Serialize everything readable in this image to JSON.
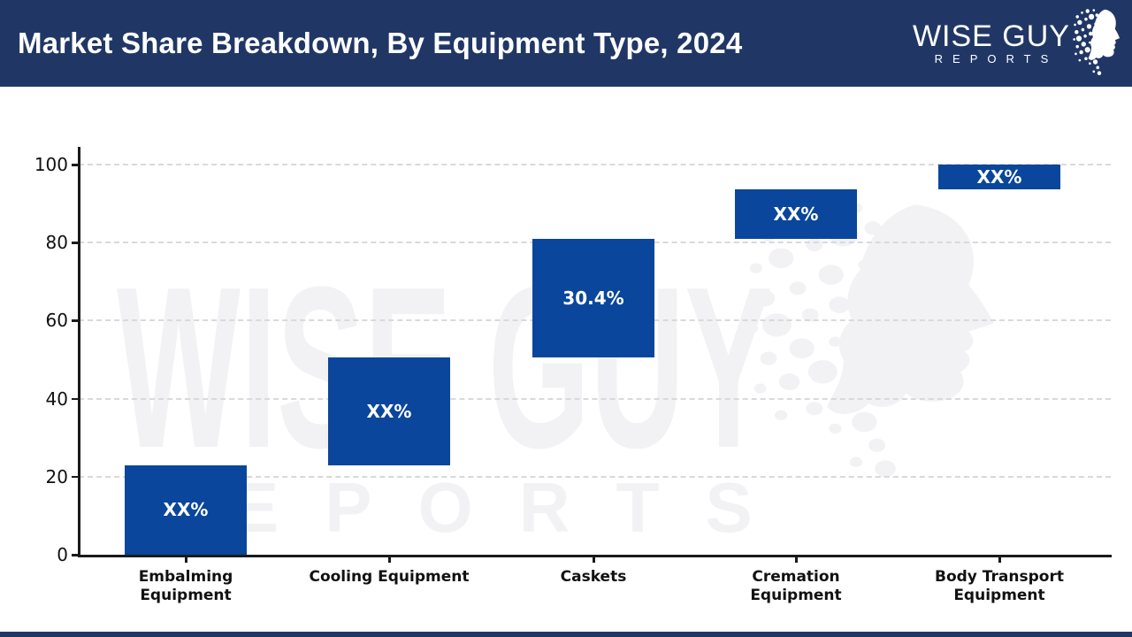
{
  "header": {
    "title": "Market Share Breakdown, By Equipment Type, 2024",
    "logo": {
      "wordmark": "WISE GUY",
      "subtitle": "REPORTS",
      "face_icon": "dot-head-profile-icon"
    }
  },
  "watermark": {
    "wordmark": "WISE GUY",
    "subtitle": "REPORTS",
    "face_icon": "dot-head-profile-icon"
  },
  "colors": {
    "header_bg": "#203766",
    "title_text": "#ffffff",
    "bar": "#0a469b",
    "bar_label": "#ffffff",
    "grid": "#d9d9d9",
    "axis": "#1a1a1a",
    "watermark": "#f2f2f4"
  },
  "chart_data": {
    "type": "bar",
    "subtype": "floating-waterfall",
    "title": "Market Share Breakdown, By Equipment Type, 2024",
    "unit": "%",
    "categories": [
      "Embalming Equipment",
      "Cooling Equipment",
      "Caskets",
      "Cremation Equipment",
      "Body Transport Equipment"
    ],
    "category_lines": [
      [
        "Embalming",
        "Equipment"
      ],
      [
        "Cooling Equipment"
      ],
      [
        "Caskets"
      ],
      [
        "Cremation",
        "Equipment"
      ],
      [
        "Body Transport",
        "Equipment"
      ]
    ],
    "segments": [
      {
        "category": "Embalming Equipment",
        "start": 0,
        "end": 23,
        "value": 23,
        "label": "XX%"
      },
      {
        "category": "Cooling Equipment",
        "start": 23,
        "end": 50.6,
        "value": 27.6,
        "label": "XX%"
      },
      {
        "category": "Caskets",
        "start": 50.6,
        "end": 81,
        "value": 30.4,
        "label": "30.4%"
      },
      {
        "category": "Cremation Equipment",
        "start": 81,
        "end": 93.6,
        "value": 12.6,
        "label": "XX%"
      },
      {
        "category": "Body Transport Equipment",
        "start": 93.6,
        "end": 100,
        "value": 6.4,
        "label": "XX%"
      }
    ],
    "yticks": [
      0,
      20,
      40,
      60,
      80,
      100
    ],
    "ylim": [
      0,
      104
    ],
    "grid": "horizontal-dashed",
    "legend": "none"
  }
}
